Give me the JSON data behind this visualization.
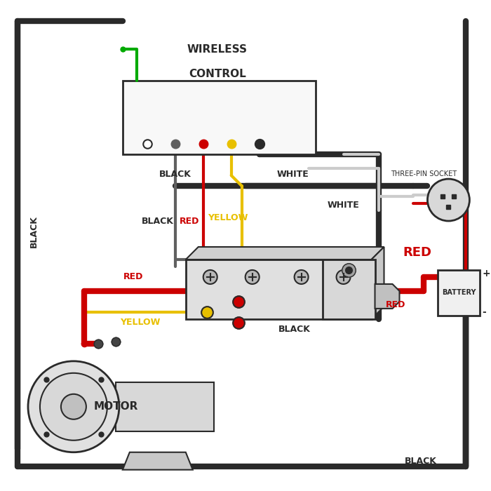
{
  "bg_color": "#ffffff",
  "wire_colors": {
    "black": "#2a2a2a",
    "red": "#cc0000",
    "yellow": "#e8c000",
    "green": "#00aa00",
    "gray": "#606060",
    "white_wire": "#cccccc"
  },
  "labels": {
    "wireless": "WIRELESS",
    "control": "CONTROL",
    "black_left": "BLACK",
    "black_top": "BLACK",
    "black_bottom": "BLACK",
    "black_mid": "BLACK",
    "red_left": "RED",
    "red_right": "RED",
    "red_bat": "RED",
    "yellow_mid": "YELLOW",
    "yellow_motor": "YELLOW",
    "white_top": "WHITE",
    "white_mid": "WHITE",
    "motor": "MOTOR",
    "battery": "BATTERY",
    "three_pin": "THREE-PIN SOCKET"
  },
  "font_sizes": {
    "label": 9,
    "title": 11,
    "small": 7
  }
}
